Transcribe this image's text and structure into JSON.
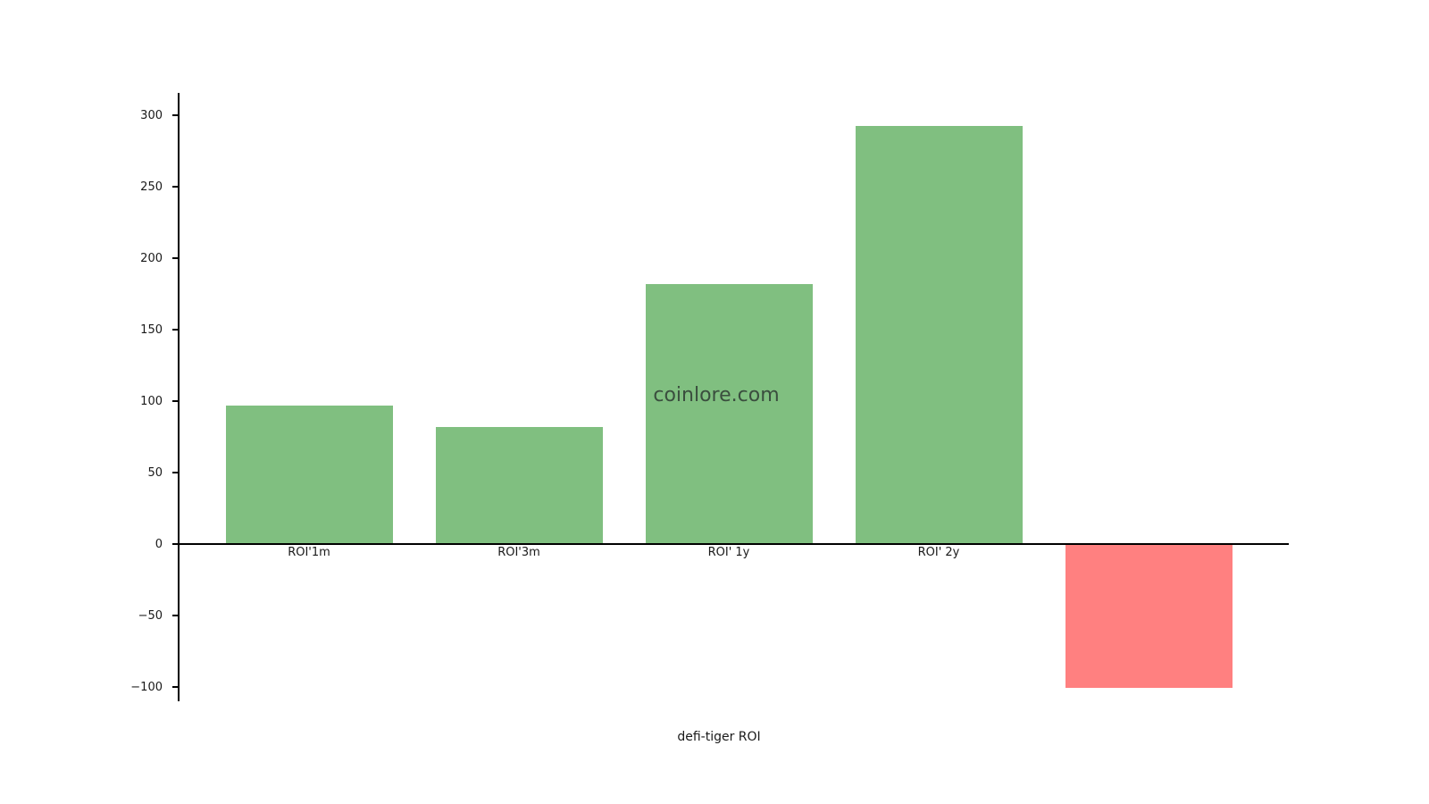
{
  "page": {
    "background_color": "#ffffff"
  },
  "watermark": {
    "text": "coinlore.com",
    "color": "#3a4e3e"
  },
  "chart_data": {
    "type": "bar",
    "title": "defi-tiger ROI",
    "xlabel": "defi-tiger ROI",
    "ylabel": "",
    "categories": [
      "ROI'1m",
      "ROI'3m",
      "ROI' 1y",
      "ROI' 2y",
      ""
    ],
    "values": [
      96,
      81,
      181,
      292,
      -100
    ],
    "series": [
      {
        "name": "defi-tiger ROI %",
        "values": [
          96,
          81,
          181,
          292,
          -100
        ]
      }
    ],
    "y_ticks": [
      300,
      250,
      200,
      150,
      100,
      50,
      0,
      -50,
      -100
    ],
    "ylim": [
      -110,
      315
    ],
    "baseline": 0,
    "grid": false,
    "legend_position": "none",
    "positive_color": "#80bf80",
    "negative_color": "#ff8080",
    "axis_color": "#000000",
    "tick_label_color": "#1a1a1a"
  }
}
